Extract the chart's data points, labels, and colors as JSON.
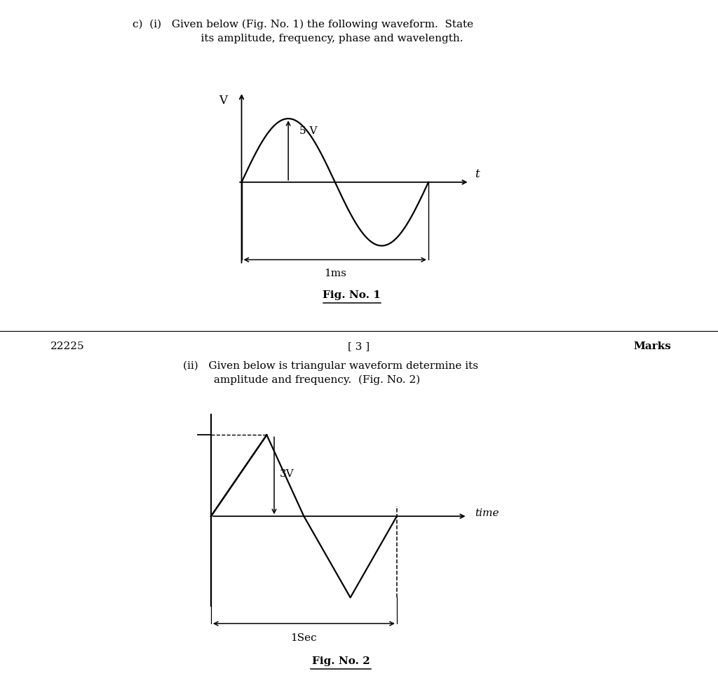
{
  "bg_color": "#ffffff",
  "fig_width": 10.24,
  "fig_height": 9.94,
  "header_line1": "c)  (i)   Given below (Fig. No. 1) the following waveform.  State",
  "header_line2": "                    its amplitude, frequency, phase and wavelength.",
  "fig1_caption": "Fig. No. 1",
  "fig2_caption": "Fig. No. 2",
  "bottom_left_text": "22225",
  "bottom_center_text": "[ 3 ]",
  "bottom_right_text": "Marks",
  "fig2_line1": "(ii)   Given below is triangular waveform determine its",
  "fig2_line2": "         amplitude and frequency.  (Fig. No. 2)"
}
